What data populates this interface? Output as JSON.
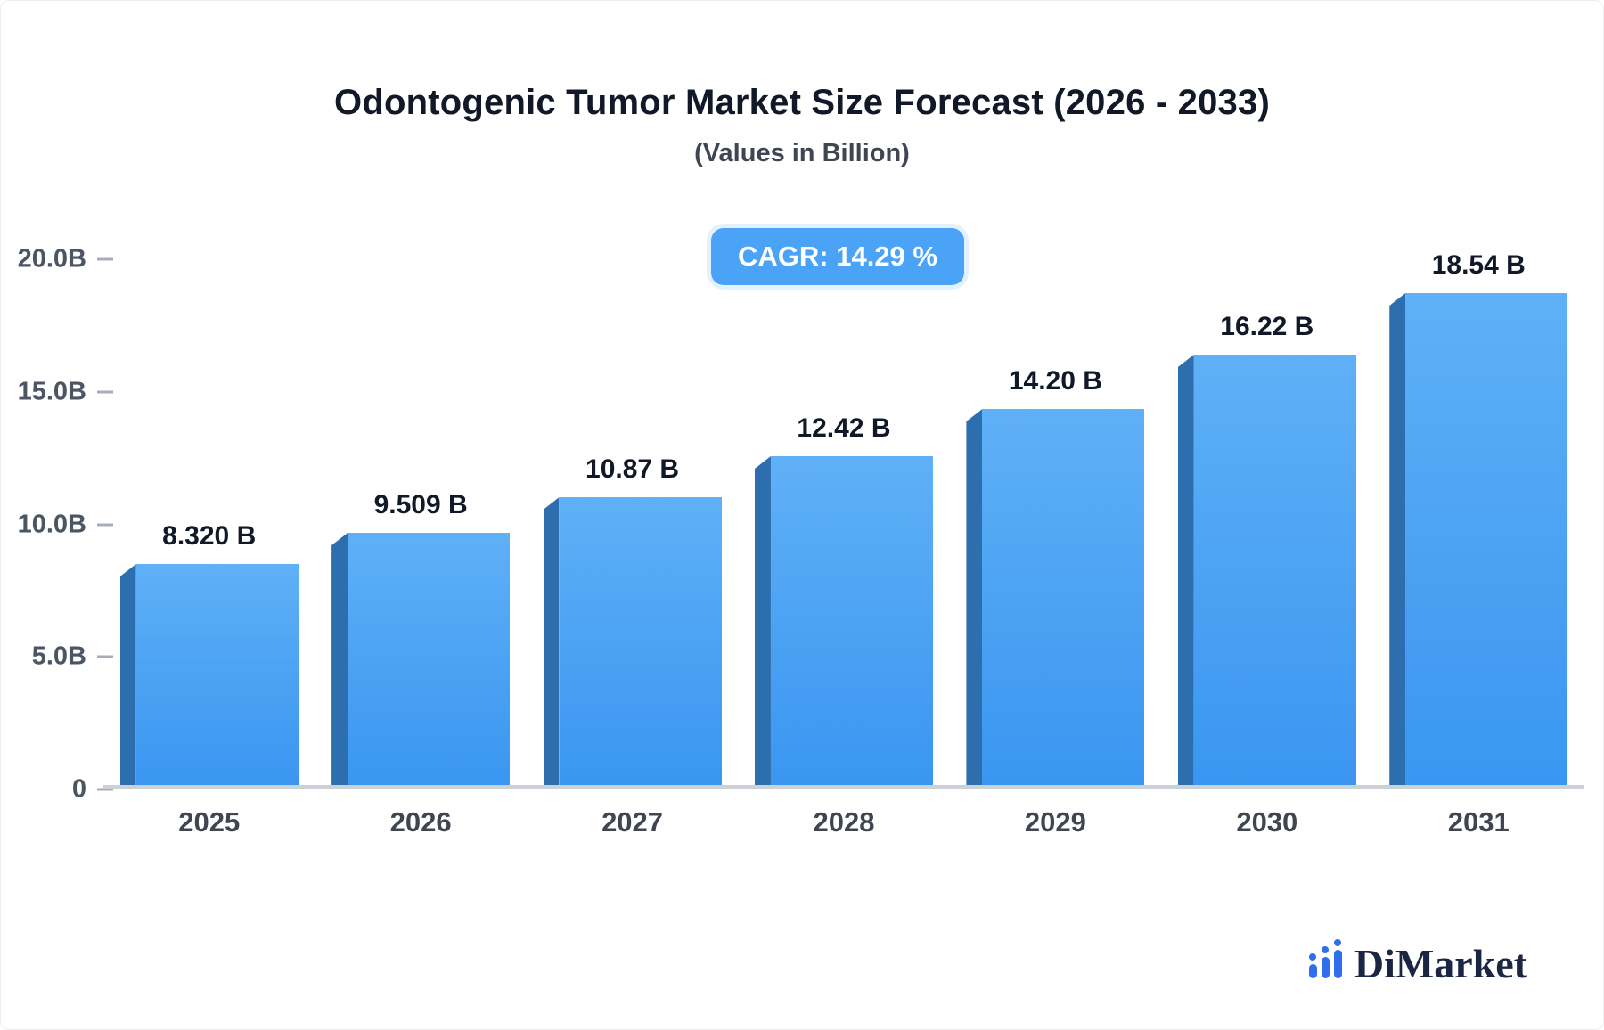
{
  "header": {
    "title": "Odontogenic Tumor Market Size Forecast (2026 - 2033)",
    "subtitle": "(Values in Billion)",
    "cagr_label": "CAGR: 14.29 %"
  },
  "brand": {
    "name": "DiMarket"
  },
  "colors": {
    "bar_face": "#3f9cf3",
    "bar_face_light": "#5fb0f6",
    "bar_side": "#2d6fae",
    "badge_bg": "#4aa3f7",
    "brand_blue": "#2f6fed",
    "brand_text": "#1b2742",
    "axis_text": "#4b5563",
    "baseline": "#ccd1d8"
  },
  "chart_data": {
    "type": "bar",
    "title": "Odontogenic Tumor Market Size Forecast (2026 - 2033)",
    "subtitle": "(Values in Billion)",
    "cagr_percent": 14.29,
    "categories": [
      "2025",
      "2026",
      "2027",
      "2028",
      "2029",
      "2030",
      "2031"
    ],
    "values": [
      8.32,
      9.509,
      10.87,
      12.42,
      14.2,
      16.22,
      18.54
    ],
    "bar_labels": [
      "8.320 B",
      "9.509 B",
      "10.87 B",
      "12.42 B",
      "14.20 B",
      "16.22 B",
      "18.54 B"
    ],
    "xlabel": "",
    "ylabel": "",
    "ylim": [
      0,
      20
    ],
    "yticks": [
      {
        "label": "20.0B",
        "value": 20
      },
      {
        "label": "15.0B",
        "value": 15
      },
      {
        "label": "10.0B",
        "value": 10
      },
      {
        "label": "5.0B",
        "value": 5
      },
      {
        "label": "0",
        "value": 0
      }
    ],
    "grid": false,
    "legend": false
  }
}
